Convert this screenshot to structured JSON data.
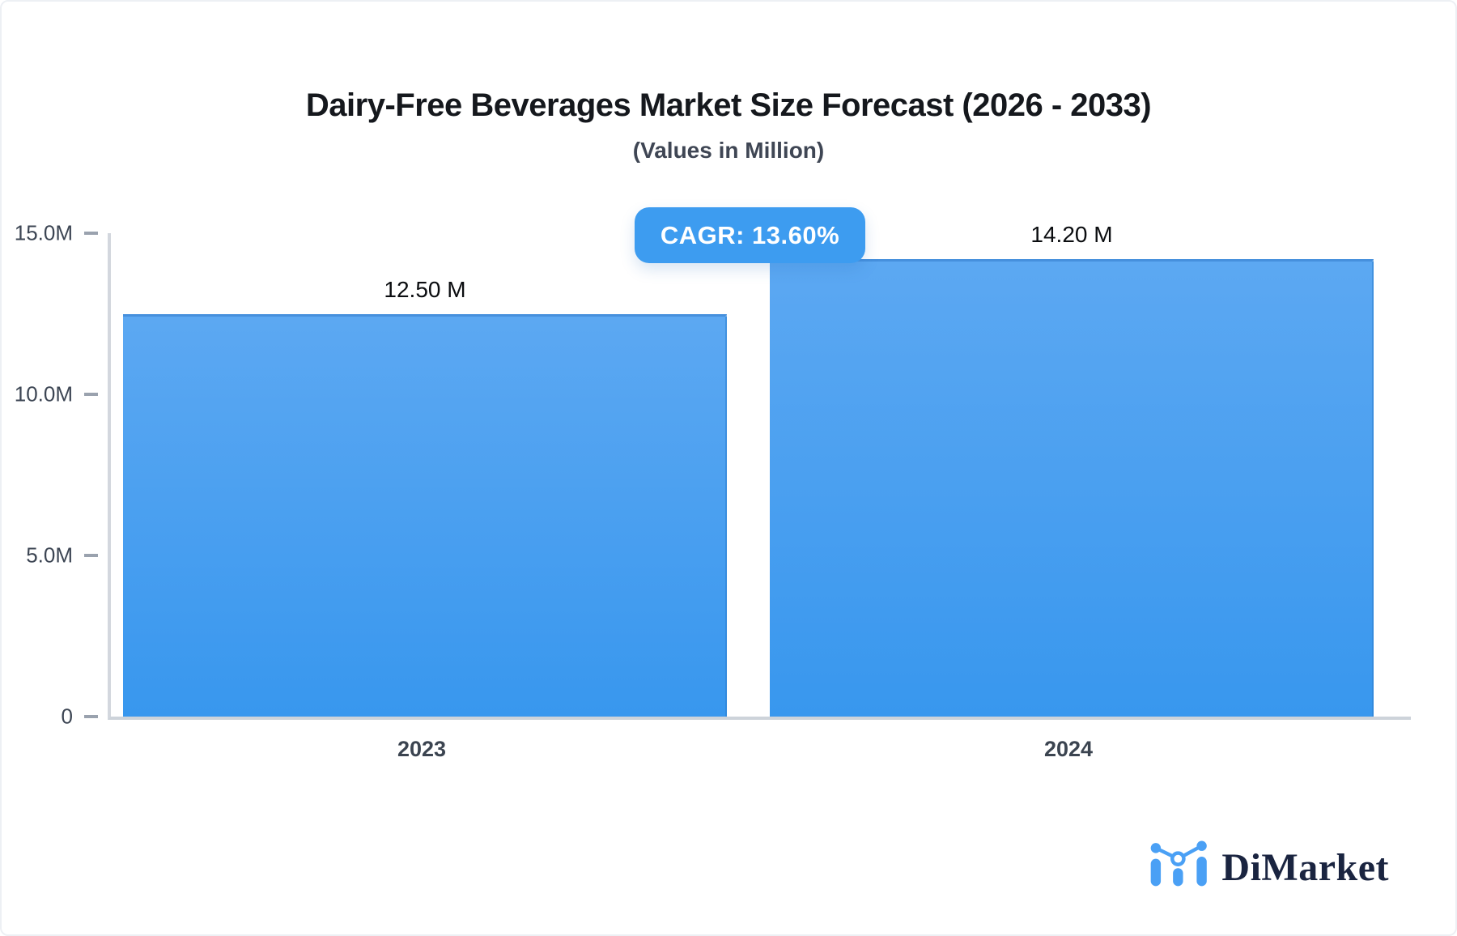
{
  "badge": {
    "label": "CAGR: 13.60%"
  },
  "brand": {
    "name": "DiMarket",
    "icon": "bar-line-chart-icon"
  },
  "chart_data": {
    "type": "bar",
    "title": "Dairy-Free Beverages Market Size Forecast (2026 - 2033)",
    "subtitle": "(Values in Million)",
    "categories": [
      "2023",
      "2024"
    ],
    "values": [
      12.5,
      14.2
    ],
    "value_labels": [
      "12.50 M",
      "14.20 M"
    ],
    "unit": "M",
    "cagr_percent": "13.60%",
    "xlabel": "",
    "ylabel": "",
    "ylim": [
      0,
      15
    ],
    "yticks": [
      {
        "value": 15,
        "label": "15.0M"
      },
      {
        "value": 10,
        "label": "10.0M"
      },
      {
        "value": 5,
        "label": "5.0M"
      },
      {
        "value": 0,
        "label": "0"
      }
    ],
    "grid": false,
    "legend_position": "none",
    "bar_gradient_top": "#5ca8f2",
    "bar_gradient_bottom": "#3897ee"
  },
  "colors": {
    "card_border": "#edf0f4",
    "title_text": "#15181d",
    "subtitle_text": "#3f4654",
    "badge_bg": "#3d9cf0",
    "badge_text": "#ffffff",
    "axis_line": "#d3d7de",
    "baseline": "#cdd3da",
    "tick_mark": "#9aa2ae",
    "tick_text": "#3c4553",
    "value_text": "#0b0d10",
    "xlabel_text": "#3b4450",
    "bar_top": "#5ca8f2",
    "bar_bottom": "#3897ee",
    "bar_edge": "#4690dd",
    "brand_blue": "#4aa0f5",
    "brand_navy": "#1a2440"
  }
}
